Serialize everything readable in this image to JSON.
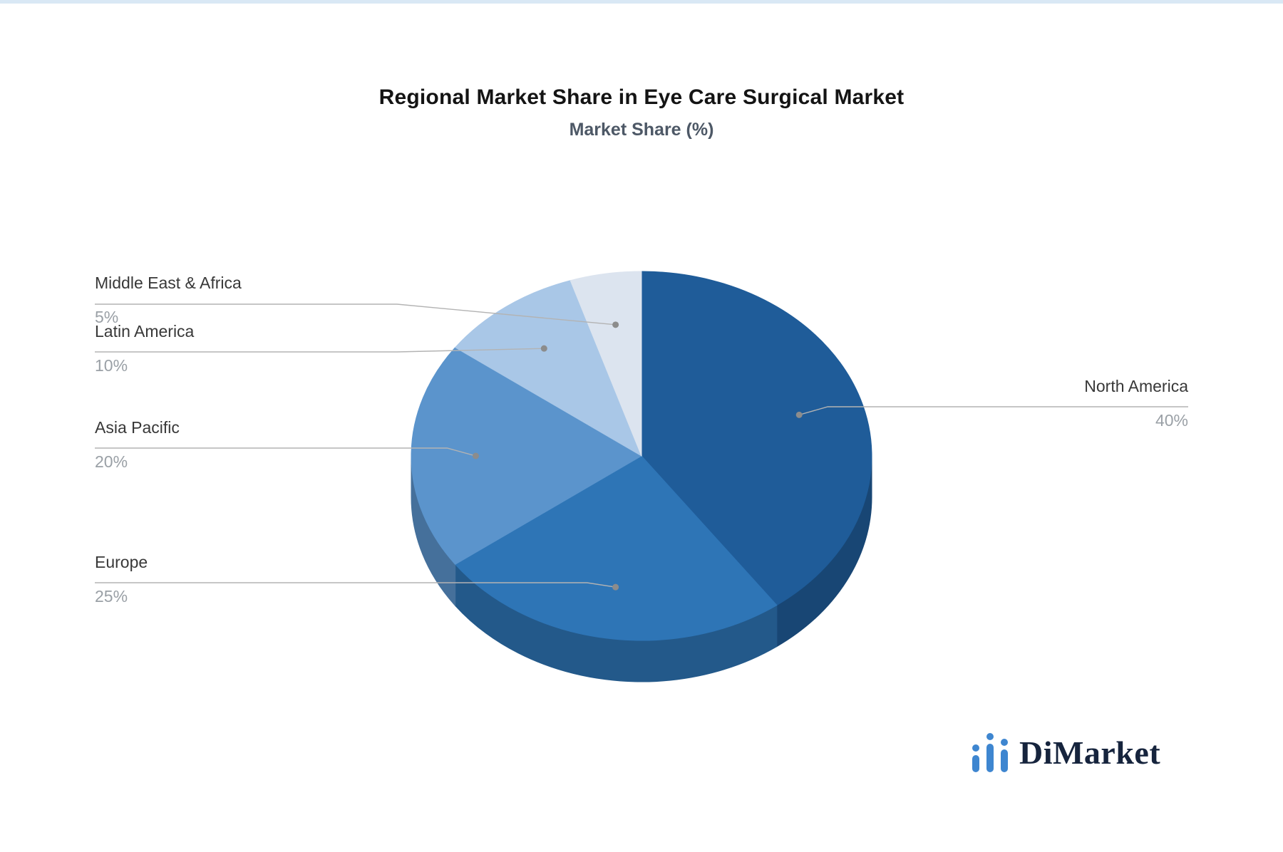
{
  "title": "Regional Market Share in Eye Care Surgical Market",
  "subtitle": "Market Share (%)",
  "logo": {
    "icon": "bar-chart-icon",
    "text": "DiMarket"
  },
  "chart_data": {
    "type": "pie",
    "title": "Regional Market Share in Eye Care Surgical Market",
    "subtitle": "Market Share (%)",
    "unit": "%",
    "labels": [
      "North America",
      "Europe",
      "Asia Pacific",
      "Latin America",
      "Middle East & Africa"
    ],
    "values": [
      40,
      25,
      20,
      10,
      5
    ],
    "display_values": [
      "40%",
      "25%",
      "20%",
      "10%",
      "5%"
    ],
    "colors": [
      "#1f5c99",
      "#2e75b6",
      "#5b94cc",
      "#a9c7e7",
      "#dce4ef"
    ],
    "start_angle_deg": -90,
    "direction": "clockwise",
    "style": "3d-pie",
    "legend": "none",
    "label_line_color": "#b3b3b3",
    "label_name_color": "#383838",
    "label_value_color": "#9aa0a6"
  }
}
